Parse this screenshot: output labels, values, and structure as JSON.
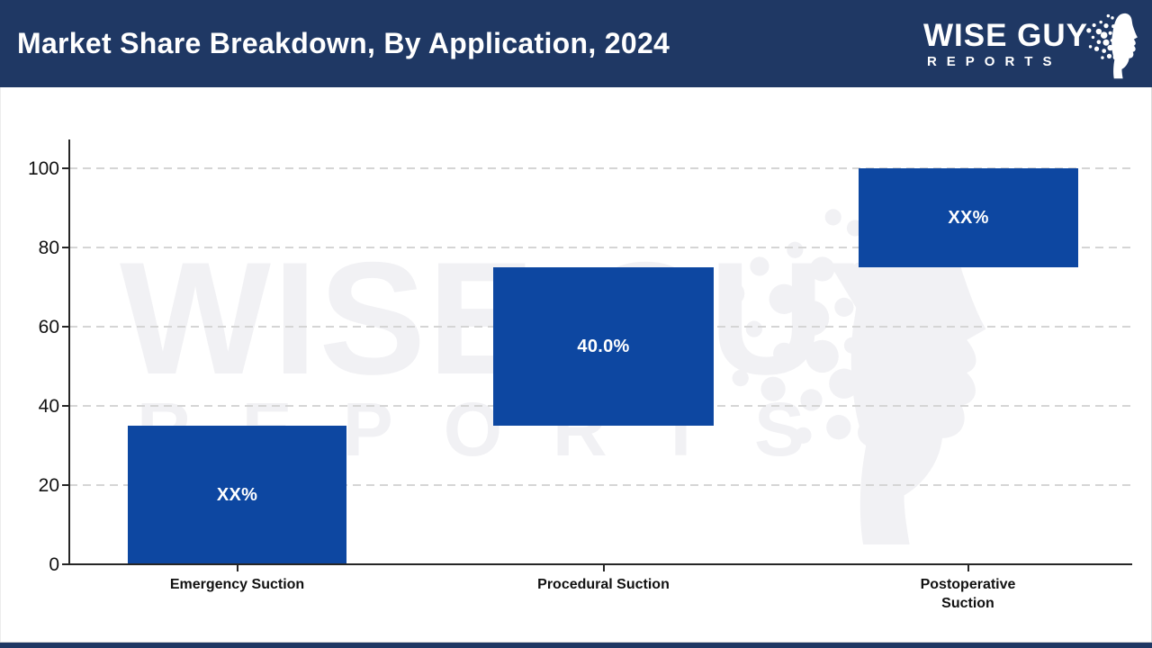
{
  "header": {
    "title": "Market Share Breakdown, By Application, 2024",
    "logo": {
      "wordmark": "WISE GUY",
      "subtext": "REPORTS"
    }
  },
  "watermark": {
    "wordmark": "WISE GUY",
    "subtext": "REPORTS"
  },
  "chart_data": {
    "type": "bar",
    "subtype": "stacked-waterfall",
    "title": "Market Share Breakdown, By Application, 2024",
    "categories": [
      "Emergency Suction",
      "Procedural Suction",
      "Postoperative Suction"
    ],
    "x_tick_display": [
      "Emergency Suction",
      "Procedural Suction",
      "Postoperative\nSuction"
    ],
    "series": [
      {
        "name": "Market Share",
        "segments": [
          {
            "category": "Emergency Suction",
            "start": 0,
            "end": 35,
            "value": 35,
            "value_label": "XX%"
          },
          {
            "category": "Procedural Suction",
            "start": 35,
            "end": 75,
            "value": 40,
            "value_label": "40.0%"
          },
          {
            "category": "Postoperative Suction",
            "start": 75,
            "end": 100,
            "value": 25,
            "value_label": "XX%"
          }
        ]
      }
    ],
    "y_ticks": [
      "0",
      "20",
      "40",
      "60",
      "80",
      "100"
    ],
    "ylim": [
      0,
      100
    ],
    "xlabel": "",
    "ylabel": "",
    "grid": "horizontal-dashed",
    "legend": "none",
    "colors": {
      "bar": "#0D47A1",
      "header_bg": "#1F3864",
      "grid": "#D5D5D5",
      "axis": "#262626",
      "tick_text": "#111111",
      "bar_label_text": "#FFFFFF",
      "watermark": "#F1F1F4"
    }
  }
}
